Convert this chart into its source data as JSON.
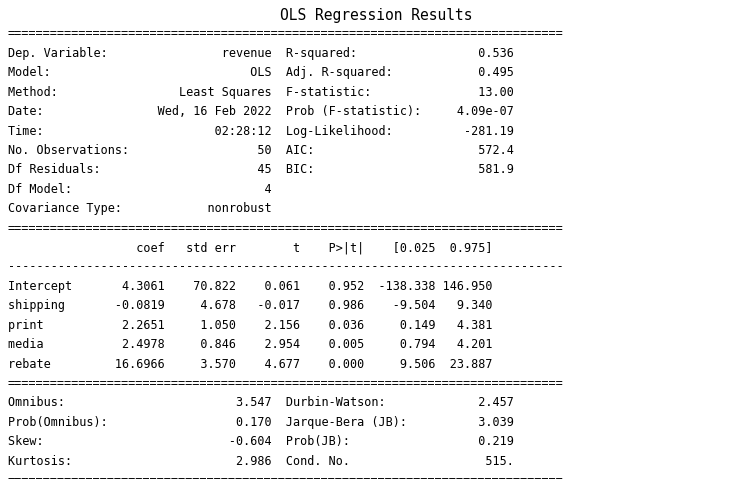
{
  "title": "OLS Regression Results",
  "background_color": "#ffffff",
  "text_color": "#000000",
  "font_family": "DejaVu Sans Mono",
  "title_fontsize": 10.5,
  "body_fontsize": 8.5,
  "top_section": [
    [
      "Dep. Variable:",
      "revenue",
      "R-squared:",
      "0.536"
    ],
    [
      "Model:",
      "OLS",
      "Adj. R-squared:",
      "0.495"
    ],
    [
      "Method:",
      "Least Squares",
      "F-statistic:",
      "13.00"
    ],
    [
      "Date:",
      "Wed, 16 Feb 2022",
      "Prob (F-statistic):",
      "4.09e-07"
    ],
    [
      "Time:",
      "02:28:12",
      "Log-Likelihood:",
      "-281.19"
    ],
    [
      "No. Observations:",
      "50",
      "AIC:",
      "572.4"
    ],
    [
      "Df Residuals:",
      "45",
      "BIC:",
      "581.9"
    ],
    [
      "Df Model:",
      "4",
      "",
      ""
    ],
    [
      "Covariance Type:",
      "nonrobust",
      "",
      ""
    ]
  ],
  "col_headers": [
    "",
    "coef",
    "std err",
    "t",
    "P>|t|",
    "[0.025",
    "0.975]"
  ],
  "coef_rows": [
    [
      "Intercept",
      "4.3061",
      "70.822",
      "0.061",
      "0.952",
      "-138.338",
      "146.950"
    ],
    [
      "shipping",
      "-0.0819",
      "4.678",
      "-0.017",
      "0.986",
      "-9.504",
      "9.340"
    ],
    [
      "print",
      "2.2651",
      "1.050",
      "2.156",
      "0.036",
      "0.149",
      "4.381"
    ],
    [
      "media",
      "2.4978",
      "0.846",
      "2.954",
      "0.005",
      "0.794",
      "4.201"
    ],
    [
      "rebate",
      "16.6966",
      "3.570",
      "4.677",
      "0.000",
      "9.506",
      "23.887"
    ]
  ],
  "bottom_section": [
    [
      "Omnibus:",
      "3.547",
      "Durbin-Watson:",
      "2.457"
    ],
    [
      "Prob(Omnibus):",
      "0.170",
      "Jarque-Bera (JB):",
      "3.039"
    ],
    [
      "Skew:",
      "-0.604",
      "Prob(JB):",
      "0.219"
    ],
    [
      "Kurtosis:",
      "2.986",
      "Cond. No.",
      "515."
    ]
  ],
  "sep78": "==============================================================================",
  "dash78": "------------------------------------------------------------------------------"
}
